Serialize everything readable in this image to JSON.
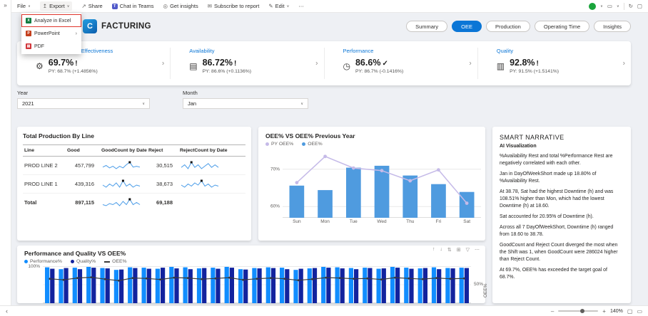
{
  "window": {
    "toolbar": {
      "file": "File",
      "export": "Export",
      "share": "Share",
      "chat": "Chat in Teams",
      "insights": "Get insights",
      "subscribe": "Subscribe to report",
      "edit": "Edit"
    },
    "status": {
      "zoom": "140%"
    }
  },
  "export_menu": {
    "analyze": "Analyze in Excel",
    "powerpoint": "PowerPoint",
    "pdf": "PDF"
  },
  "report": {
    "logo_letter": "C",
    "title": "FACTURING",
    "tabs": [
      {
        "label": "Summary",
        "active": false
      },
      {
        "label": "OEE",
        "active": true
      },
      {
        "label": "Production",
        "active": false
      },
      {
        "label": "Operating Time",
        "active": false
      },
      {
        "label": "Insights",
        "active": false
      }
    ],
    "filters": {
      "year_label": "Year",
      "year_value": "2021",
      "month_label": "Month",
      "month_value": "Jan"
    },
    "kpis": [
      {
        "label": "Overall Equipment Effectiveness",
        "value": "69.7%",
        "flag": "!",
        "py": "PY: 68.7% (+1.4856%)"
      },
      {
        "label": "Availability",
        "value": "86.72%",
        "flag": "!",
        "py": "PY: 86.6% (+0.1136%)"
      },
      {
        "label": "Performance",
        "value": "86.6%",
        "flag": "✓",
        "py": "PY: 86.7% (-0.1416%)"
      },
      {
        "label": "Quality",
        "value": "92.8%",
        "flag": "!",
        "py": "PY: 91.5% (+1.5141%)"
      }
    ]
  },
  "production_table": {
    "title": "Total Production By Line",
    "headers": [
      "Line",
      "Good",
      "GoodCount by Date",
      "Reject",
      "RejectCount by Date"
    ],
    "rows": [
      {
        "line": "PROD LINE 2",
        "good": "457,799",
        "good_spark": [
          5,
          7,
          4,
          6,
          3,
          6,
          4,
          8,
          11,
          5,
          6,
          5
        ],
        "reject": "30,515",
        "reject_spark": [
          4,
          6,
          3,
          8,
          4,
          6,
          3,
          5,
          7,
          4,
          6,
          4
        ]
      },
      {
        "line": "PROD LINE 1",
        "good": "439,316",
        "good_spark": [
          6,
          4,
          7,
          5,
          8,
          4,
          10,
          5,
          7,
          4,
          6,
          5
        ],
        "reject": "38,673",
        "reject_spark": [
          5,
          3,
          6,
          4,
          7,
          5,
          9,
          4,
          6,
          3,
          5,
          4
        ]
      }
    ],
    "total": {
      "line": "Total",
      "good": "897,115",
      "good_spark": [
        5,
        4,
        6,
        5,
        7,
        4,
        8,
        5,
        10,
        5,
        7,
        5
      ],
      "reject": "69,188"
    }
  },
  "oee_chart": {
    "type": "column-line",
    "title": "OEE% VS OEE% Previous Year",
    "legend": [
      "PY OEE%",
      "OEE%"
    ],
    "categories": [
      "Sun",
      "Mon",
      "Tue",
      "Wed",
      "Thu",
      "Fri",
      "Sat"
    ],
    "bar_series": "OEE%",
    "bar_values": [
      65.6,
      64.4,
      70.4,
      70.9,
      68.3,
      66.0,
      63.9
    ],
    "line_series": "PY OEE%",
    "line_values": [
      66.4,
      73.4,
      70.3,
      69.6,
      66.9,
      69.8,
      60.9
    ],
    "axis_range": [
      57,
      74.5
    ],
    "gridlines": [
      70,
      60
    ],
    "y_tick_labels": [
      "70%",
      "60%"
    ]
  },
  "smart_narrative": {
    "title": "SMART NARRATIVE",
    "subtitle": "AI Visualization",
    "paragraphs": [
      "%Availability Rest and total %Performance Rest are negatively correlated with each other.",
      "Jan in DayOfWeekShort  made up 18.80% of %Availability Rest.",
      "At 38.78, Sat had the highest Downtime (h) and was 108.51% higher than Mon, which had the lowest Downtime (h) at 18.60.",
      "Sat accounted for 20.95% of Downtime (h).",
      "Across all 7 DayOfWeekShort, Downtime (h) ranged from 18.60 to 38.78.",
      "GoodCount and Reject Count diverged the most when the Shift was 1, when GoodCount were 286024 higher than Reject Count.",
      "At 69.7%, OEE% has exceeded the target goal of 68.7%."
    ]
  },
  "perf_chart": {
    "type": "column-line",
    "title": "Performance and Quality VS OEE%",
    "legend": [
      "Performance%",
      "Quality%",
      "OEE%"
    ],
    "left_tick": "100%",
    "right_tick": "50%",
    "right_axis_label": "OEE%",
    "performance": [
      97,
      92,
      96,
      98,
      95,
      90,
      97,
      96,
      93,
      98,
      97,
      94,
      96,
      98,
      92,
      95,
      97,
      96,
      90,
      94,
      98,
      97,
      95,
      96,
      93,
      98,
      96,
      94,
      97,
      95,
      96
    ],
    "quality": [
      93,
      95,
      92,
      96,
      94,
      91,
      95,
      93,
      96,
      94,
      92,
      95,
      93,
      96,
      91,
      94,
      95,
      92,
      93,
      95,
      96,
      94,
      92,
      95,
      94,
      96,
      93,
      95,
      92,
      94,
      95
    ],
    "oee_line": [
      66,
      63,
      68,
      70,
      65,
      61,
      68,
      67,
      64,
      69,
      68,
      65,
      67,
      69,
      63,
      66,
      68,
      66,
      62,
      65,
      69,
      68,
      66,
      67,
      64,
      69,
      67,
      65,
      68,
      66,
      67
    ]
  },
  "colors": {
    "accent": "#0b76d6",
    "bar_blue": "#4f9bdf",
    "bar_bright": "#118DFF",
    "bar_navy": "#12239E",
    "line_purple": "#c5bae8",
    "spark_blue": "#4a9ce8",
    "highlight_red": "#e0352c",
    "teams_purple": "#5059C9",
    "excel_green": "#107C41",
    "ppt_orange": "#C43E1C",
    "pdf_red": "#D13438",
    "avatar_green": "#19a43b"
  }
}
